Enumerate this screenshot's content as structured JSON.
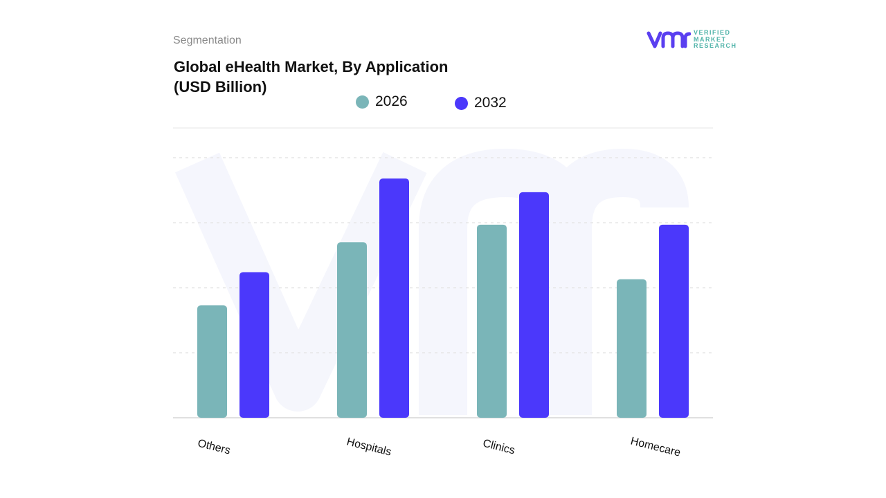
{
  "header": {
    "subtitle": "Segmentation",
    "title_line1": "Global eHealth Market, By Application",
    "title_line2": "(USD Billion)"
  },
  "logo": {
    "line1": "VERIFIED",
    "line2": "MARKET",
    "line3": "RESEARCH",
    "mark": "vmr"
  },
  "chart_data": {
    "type": "bar",
    "title": "Global eHealth Market, By Application (USD Billion)",
    "categories": [
      "Others",
      "Hospitals",
      "Clinics",
      "Homecare"
    ],
    "series": [
      {
        "name": "2026",
        "color": "#7ab5b8",
        "values": [
          1.73,
          2.7,
          2.97,
          2.13
        ]
      },
      {
        "name": "2032",
        "color": "#4b38fb",
        "values": [
          2.24,
          3.68,
          3.47,
          2.97
        ]
      }
    ],
    "ylim": [
      0,
      4.5
    ],
    "grid": true,
    "legend": "top",
    "y_tick_labels_shown": false
  }
}
